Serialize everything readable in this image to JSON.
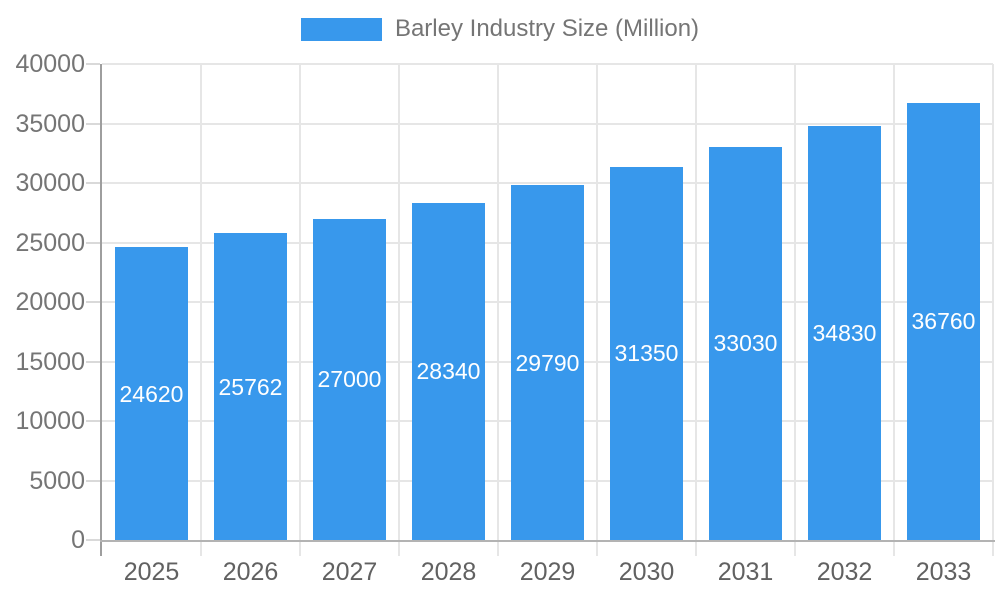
{
  "chart_data": {
    "type": "bar",
    "title": "Barley Industry Size (Million)",
    "legend": {
      "label": "Barley Industry Size (Million)",
      "position": "top"
    },
    "categories": [
      "2025",
      "2026",
      "2027",
      "2028",
      "2029",
      "2030",
      "2031",
      "2032",
      "2033"
    ],
    "series": [
      {
        "name": "Barley Industry Size (Million)",
        "values": [
          24620,
          25762,
          27000,
          28340,
          29790,
          31350,
          33030,
          34830,
          36760
        ]
      }
    ],
    "value_labels_shown": true,
    "xlabel": "",
    "ylabel": "",
    "ylim": [
      0,
      40000
    ],
    "yticks": [
      0,
      5000,
      10000,
      15000,
      20000,
      25000,
      30000,
      35000,
      40000
    ],
    "grid": true,
    "colors": {
      "bar": "#3898EC",
      "bar_value_label": "#FFFFFF",
      "legend_text": "#757575",
      "yaxis_text": "#757575",
      "xaxis_text": "#616161",
      "gridline": "#E6E6E6",
      "tick": "#D9D9D9",
      "axis_line": "#9E9E9E",
      "baseline": "#B3B3B3",
      "background": "#FFFFFF"
    }
  }
}
